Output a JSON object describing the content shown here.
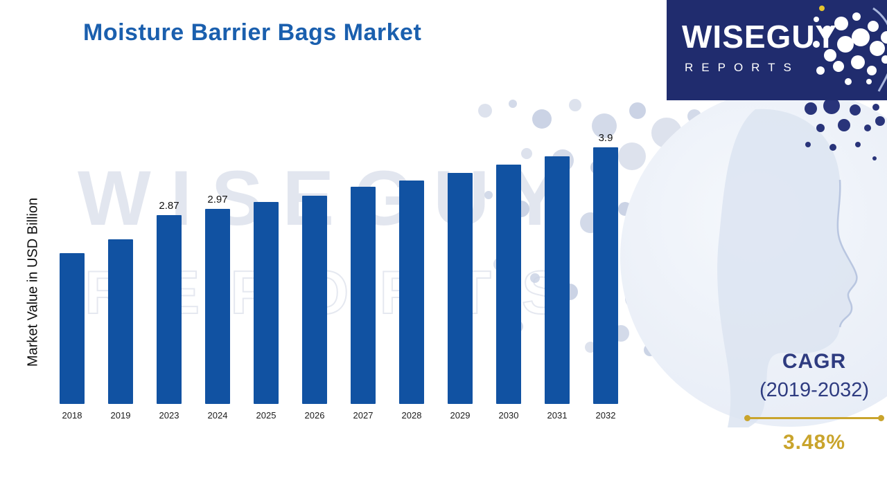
{
  "header": {
    "title": "Moisture Barrier Bags Market"
  },
  "chart_data": {
    "type": "bar",
    "title": "Moisture Barrier Bags Market",
    "xlabel": "",
    "ylabel": "Market Value in USD Billion",
    "categories": [
      "2018",
      "2019",
      "2023",
      "2024",
      "2025",
      "2026",
      "2027",
      "2028",
      "2029",
      "2030",
      "2031",
      "2032"
    ],
    "values": [
      2.3,
      2.5,
      2.87,
      2.97,
      3.07,
      3.17,
      3.3,
      3.4,
      3.52,
      3.64,
      3.77,
      3.9
    ],
    "data_labels": {
      "2023": "2.87",
      "2024": "2.97",
      "2032": "3.9"
    },
    "ylim": [
      0,
      4.2
    ],
    "bar_color": "#1152a2",
    "grid": false,
    "legend": "none"
  },
  "watermark": {
    "line1": "WISEGUY",
    "line2": "REPORTS"
  },
  "brand": {
    "name": "WISEGUY",
    "sub": "REPORTS"
  },
  "cagr": {
    "label": "CAGR",
    "range": "(2019-2032)",
    "value": "3.48%"
  },
  "colors": {
    "bar": "#1152a2",
    "title": "#1a5fae",
    "panel": "#202c6e",
    "cagr_text": "#2e3b80",
    "gold": "#c9a42c",
    "watermark": "#ccd3e2"
  }
}
